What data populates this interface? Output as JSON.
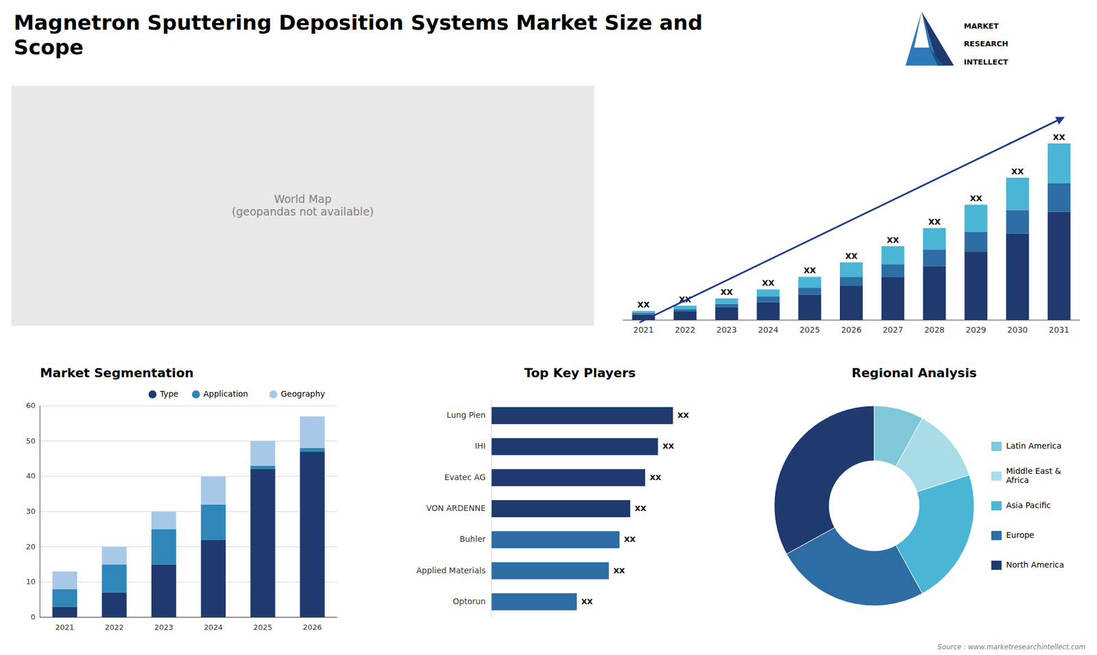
{
  "title": "Magnetron Sputtering Deposition Systems Market Size and\nScope",
  "annotations": [
    "World Map\n(geopandas not available)",
    "Source : www.marketresearchintellect.com",
    "MARKET",
    "RESEARCH",
    "INTELLECT"
  ],
  "chart_data": [
    {
      "type": "bar",
      "stacked": true,
      "categories": [
        "2021",
        "2022",
        "2023",
        "2024",
        "2025",
        "2026",
        "2027",
        "2028",
        "2029",
        "2030",
        "2031"
      ],
      "series": [
        {
          "color": "#1e3a6e",
          "values": [
            1.5,
            2.5,
            3.5,
            5,
            7,
            9.5,
            12,
            15,
            19,
            24,
            30
          ]
        },
        {
          "color": "#2e6da4",
          "values": [
            0.5,
            0.5,
            1,
            1.5,
            2,
            2.5,
            3.5,
            4.5,
            5.5,
            6.5,
            8
          ]
        },
        {
          "color": "#4ab5d4",
          "values": [
            0.5,
            1,
            1.5,
            2,
            3,
            4,
            5,
            6,
            7.5,
            9,
            11
          ],
          "value_labels": [
            "XX",
            "XX",
            "XX",
            "XX",
            "XX",
            "XX",
            "XX",
            "XX",
            "XX",
            "XX",
            "XX"
          ]
        }
      ],
      "ylim": [
        0,
        65
      ],
      "tick_labels": "x"
    },
    {
      "type": "bar",
      "stacked": true,
      "title": "Market Segmentation",
      "categories": [
        "2021",
        "2022",
        "2023",
        "2024",
        "2025",
        "2026"
      ],
      "series": [
        {
          "name": "Type",
          "color": "#1e3a6e",
          "values": [
            3,
            7,
            15,
            22,
            42,
            47
          ]
        },
        {
          "name": "Application",
          "color": "#2e87b8",
          "values": [
            5,
            8,
            10,
            10,
            1,
            1
          ]
        },
        {
          "name": "Geography",
          "color": "#a8c8e8",
          "values": [
            5,
            5,
            5,
            8,
            7,
            9
          ]
        }
      ],
      "ylim": [
        0,
        60
      ],
      "yticks": [
        0,
        10,
        20,
        30,
        40,
        50,
        60
      ],
      "grid": true,
      "legend": "upper right"
    },
    {
      "type": "bar",
      "orientation": "horizontal",
      "title": "Top Key Players",
      "categories": [
        "Lung Pien",
        "IHI",
        "Evatec AG",
        "VON ARDENNE",
        "Buhler",
        "Applied Materials",
        "Optorun"
      ],
      "values": [
        85,
        78,
        72,
        65,
        60,
        55,
        40
      ],
      "value_labels": [
        "XX",
        "XX",
        "XX",
        "XX",
        "XX",
        "XX",
        "XX"
      ],
      "colors": [
        "#1e3a6e",
        "#1e3a6e",
        "#1e3a6e",
        "#1e3a6e",
        "#2e6da4",
        "#2e6da4",
        "#2e6da4"
      ],
      "xlim": [
        0,
        115
      ],
      "tick_labels": "y"
    },
    {
      "type": "pie",
      "title": "Regional Analysis",
      "categories": [
        "Latin America",
        "Middle East &\nAfrica",
        "Asia Pacific",
        "Europe",
        "North America"
      ],
      "values": [
        8,
        12,
        22,
        25,
        33
      ],
      "colors": [
        "#7ec8d8",
        "#a8dde8",
        "#4ab5d4",
        "#2e6da4",
        "#1e3a6e"
      ],
      "legend": "right"
    }
  ]
}
